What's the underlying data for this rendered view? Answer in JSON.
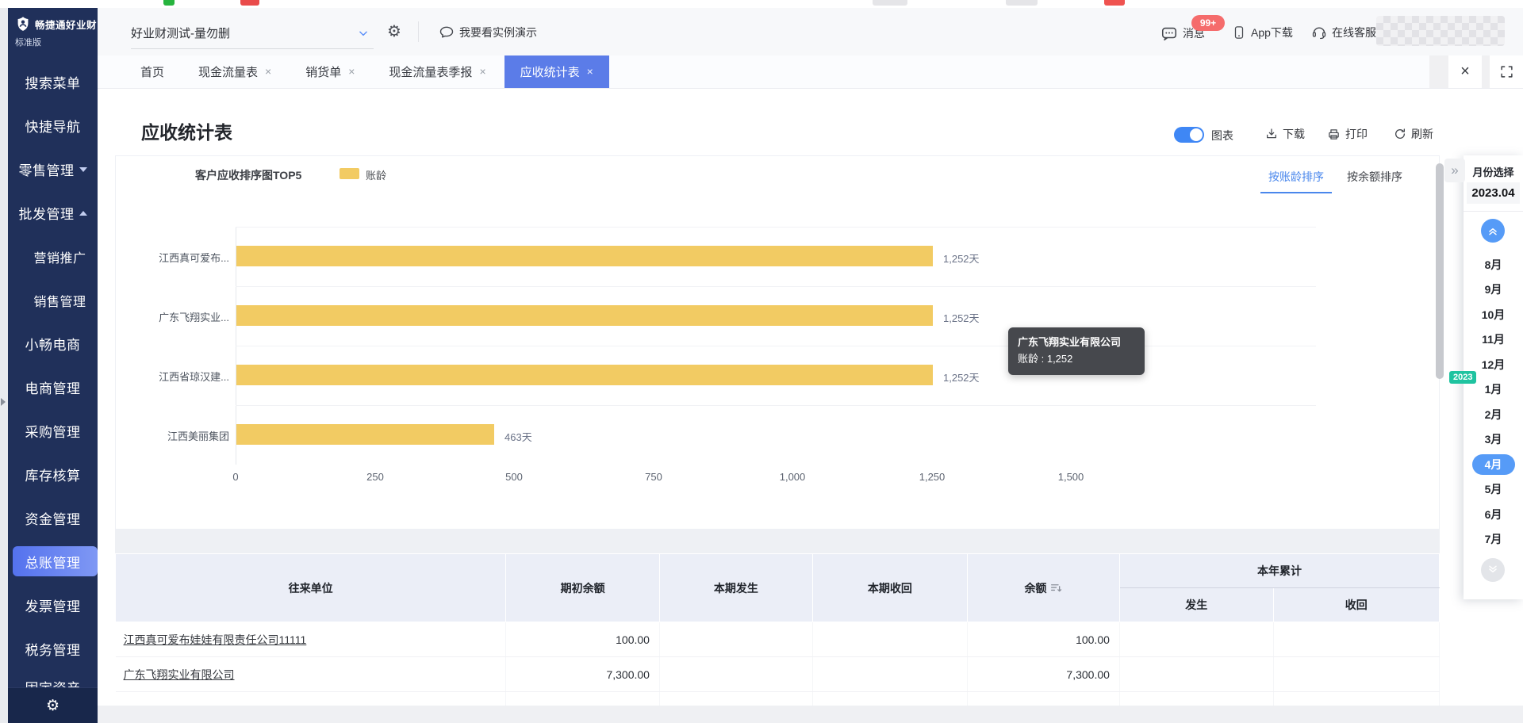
{
  "app": {
    "brand": "畅捷通好业财",
    "edition": "标准版",
    "account_dropdown": "好业财测试-量勿删",
    "demo_link": "我要看实例演示",
    "messages_label": "消息",
    "messages_badge": "99+",
    "app_download_label": "App下载",
    "support_label": "在线客服"
  },
  "sidebar": {
    "items": [
      {
        "label": "搜索菜单"
      },
      {
        "label": "快捷导航"
      },
      {
        "label": "零售管理"
      },
      {
        "label": "批发管理"
      },
      {
        "label": "营销推广"
      },
      {
        "label": "销售管理"
      },
      {
        "label": "小畅电商"
      },
      {
        "label": "电商管理"
      },
      {
        "label": "采购管理"
      },
      {
        "label": "库存核算"
      },
      {
        "label": "资金管理"
      },
      {
        "label": "总账管理"
      },
      {
        "label": "发票管理"
      },
      {
        "label": "税务管理"
      },
      {
        "label": "固定资产"
      }
    ]
  },
  "tabs": [
    {
      "label": "首页"
    },
    {
      "label": "现金流量表"
    },
    {
      "label": "销货单"
    },
    {
      "label": "现金流量表季报"
    },
    {
      "label": "应收统计表"
    }
  ],
  "page": {
    "title": "应收统计表",
    "chart_toggle_label": "图表",
    "download_label": "下载",
    "print_label": "打印",
    "refresh_label": "刷新"
  },
  "chart_data": {
    "type": "bar",
    "orientation": "horizontal",
    "title": "客户应收排序图TOP5",
    "legend": [
      "账龄"
    ],
    "categories": [
      "江西真可爱布...",
      "广东飞翔实业...",
      "江西省琼汉建...",
      "江西美丽集团"
    ],
    "values": [
      1252,
      1252,
      1252,
      463
    ],
    "value_labels": [
      "1,252天",
      "1,252天",
      "1,252天",
      "463天"
    ],
    "unit": "天",
    "xlim": [
      0,
      1500
    ],
    "tick_labels": [
      "0",
      "250",
      "500",
      "750",
      "1,000",
      "1,250",
      "1,500"
    ],
    "bar_color": "#f2cb63",
    "sort_tabs": [
      {
        "label": "按账龄排序",
        "active": true
      },
      {
        "label": "按余额排序",
        "active": false
      }
    ]
  },
  "tooltip": {
    "line1": "广东飞翔实业有限公司",
    "line2": "账龄 : 1,252"
  },
  "month_panel": {
    "title": "月份选择",
    "current": "2023.04",
    "year_badge": "2023",
    "months": [
      "8月",
      "9月",
      "10月",
      "11月",
      "12月",
      "1月",
      "2月",
      "3月",
      "4月",
      "5月",
      "6月",
      "7月"
    ],
    "selected": "4月"
  },
  "table": {
    "headers": {
      "unit": "往来单位",
      "opening": "期初余额",
      "incurred": "本期发生",
      "received": "本期收回",
      "balance": "余额",
      "ytd": "本年累计",
      "ytd_incurred": "发生",
      "ytd_received": "收回"
    },
    "rows": [
      {
        "name": "江西真可爱布娃娃有限责任公司11111",
        "opening": "100.00",
        "incurred": "",
        "received": "",
        "balance": "100.00",
        "ytd_incurred": "",
        "ytd_received": ""
      },
      {
        "name": "广东飞翔实业有限公司",
        "opening": "7,300.00",
        "incurred": "",
        "received": "",
        "balance": "7,300.00",
        "ytd_incurred": "",
        "ytd_received": ""
      }
    ]
  },
  "colors": {
    "accent_blue": "#5b7ce8",
    "bar_yellow": "#f2cb63",
    "badge_red": "#f56c6c",
    "month_blue": "#569bf7",
    "year_green": "#1fc3a0"
  }
}
